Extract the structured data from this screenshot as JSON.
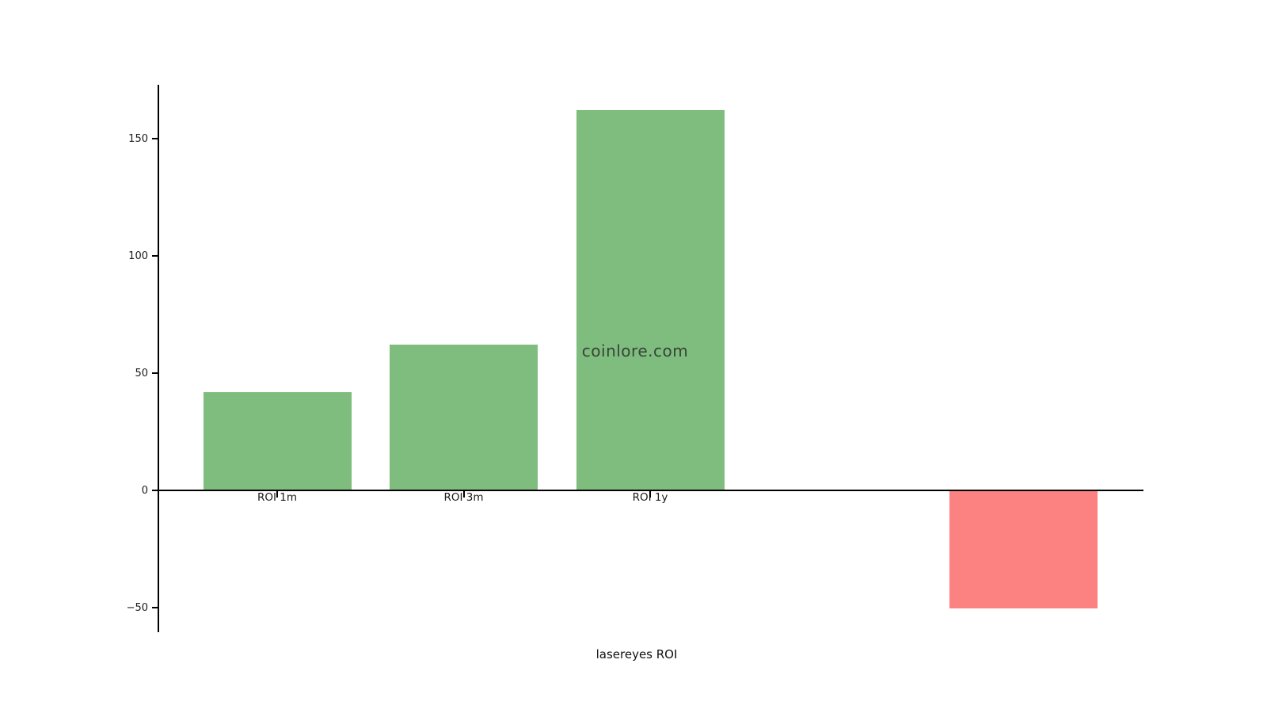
{
  "chart": {
    "title": "lasereyes ROI",
    "watermark": "coinlore.com"
  },
  "chart_data": {
    "type": "bar",
    "title": "lasereyes ROI",
    "xlabel": "",
    "ylabel": "",
    "categories": [
      "ROI 1m",
      "ROI 3m",
      "ROI 1y",
      "",
      ""
    ],
    "values": [
      42,
      62,
      162,
      null,
      -50
    ],
    "bar_color_keys": [
      "positive",
      "positive",
      "positive",
      null,
      "negative"
    ],
    "colors": {
      "positive": "#7ebd7e",
      "negative": "#fc8181",
      "axis": "#000000",
      "text": "#1a1a1a"
    },
    "yticks": [
      {
        "value": 150,
        "label": "150"
      },
      {
        "value": 100,
        "label": "100"
      },
      {
        "value": 50,
        "label": "50"
      },
      {
        "value": 0,
        "label": "0"
      },
      {
        "value": -50,
        "label": "−50"
      }
    ],
    "ylim": [
      -60.5,
      173
    ],
    "grid": false,
    "legend": false,
    "annotations": [
      "coinlore.com"
    ]
  }
}
